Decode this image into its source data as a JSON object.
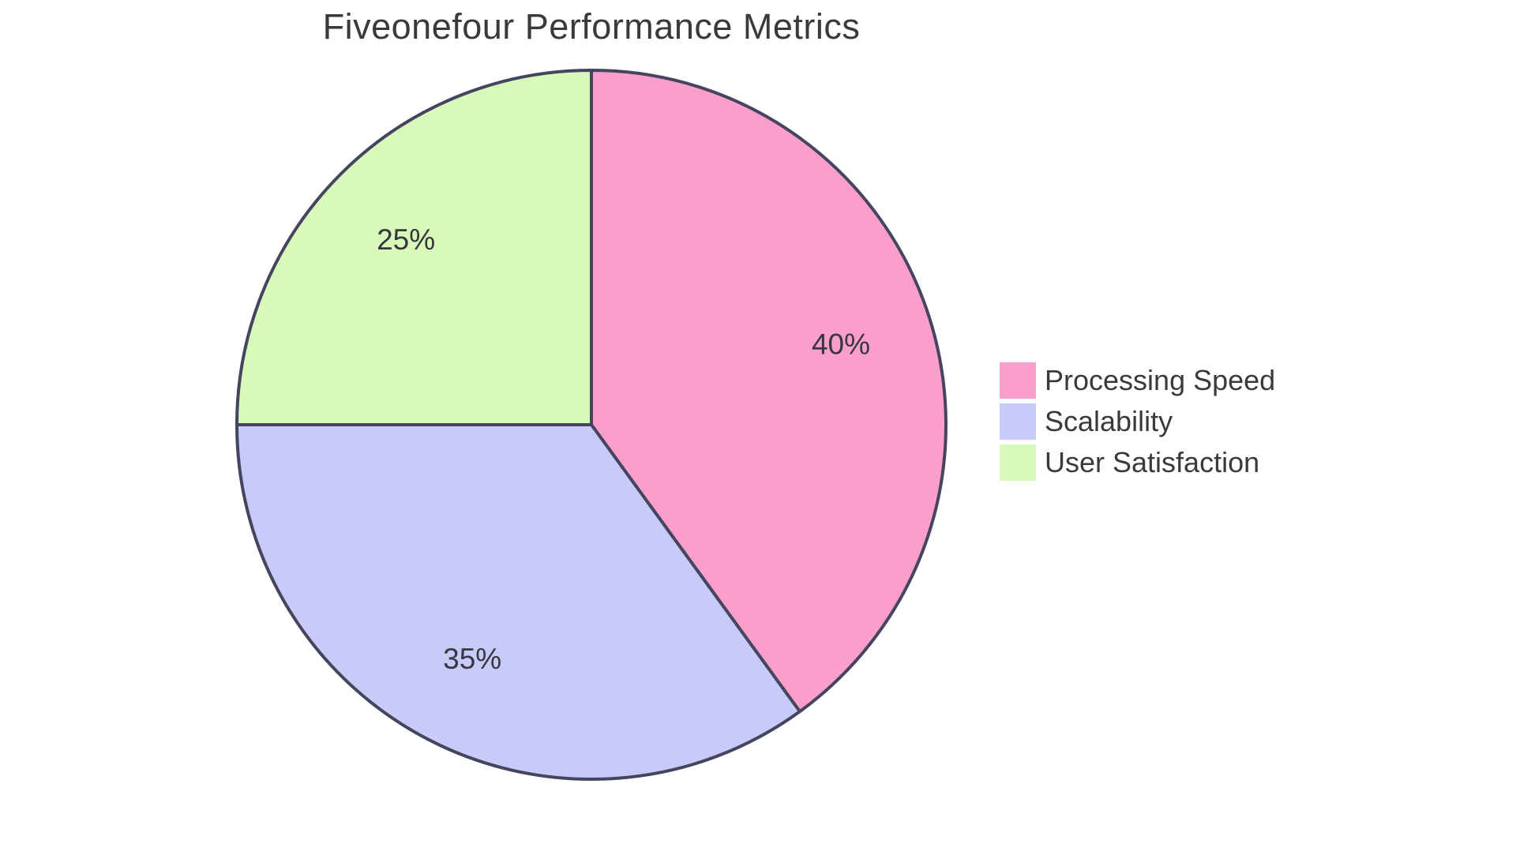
{
  "page": {
    "background": "#ffffff",
    "text_color": "#3a3a3e"
  },
  "chart_data": {
    "type": "pie",
    "title": "Fiveonefour Performance Metrics",
    "series": [
      {
        "label": "Processing Speed",
        "value": 40,
        "percent_label": "40%",
        "color": "#fa9fcc"
      },
      {
        "label": "Scalability",
        "value": 35,
        "percent_label": "35%",
        "color": "#c8caf8"
      },
      {
        "label": "User Satisfaction",
        "value": 25,
        "percent_label": "25%",
        "color": "#d9f9ba"
      }
    ],
    "start_angle_deg": 0,
    "direction": "clockwise",
    "stroke_color": "#45455f",
    "stroke_width": 4,
    "legend_position": "right",
    "labels_shown": "percent-inside"
  }
}
